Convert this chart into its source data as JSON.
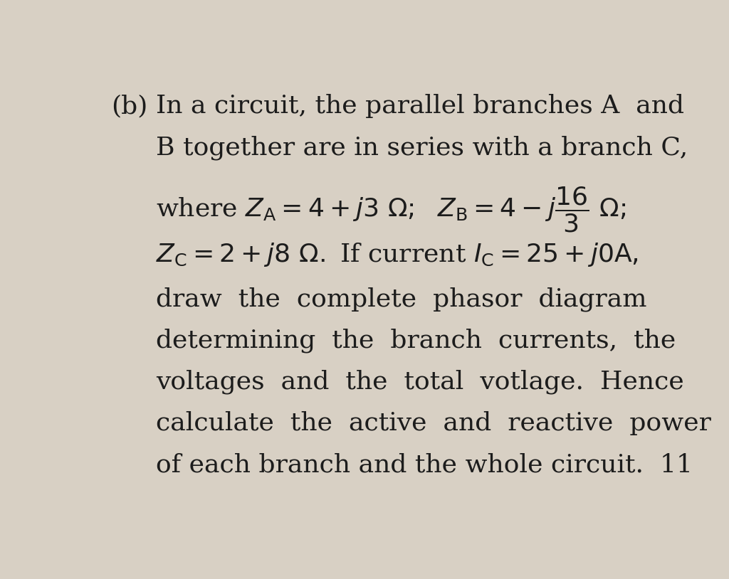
{
  "background_color": "#d8d0c4",
  "text_color": "#1c1c1c",
  "figsize": [
    10.24,
    8.14
  ],
  "dpi": 100,
  "label_b": "(b)",
  "line1": "In a circuit, the parallel branches A  and",
  "line2": "B together are in series with a branch C,",
  "line5": "draw  the  complete  phasor  diagram",
  "line6": "determining  the  branch  currents,  the",
  "line7": "voltages  and  the  total  votlage.  Hence",
  "line8": "calculate  the  active  and  reactive  power",
  "line9": "of each branch and the whole circuit.  11",
  "font_size_main": 26,
  "font_family": "DejaVu Serif"
}
